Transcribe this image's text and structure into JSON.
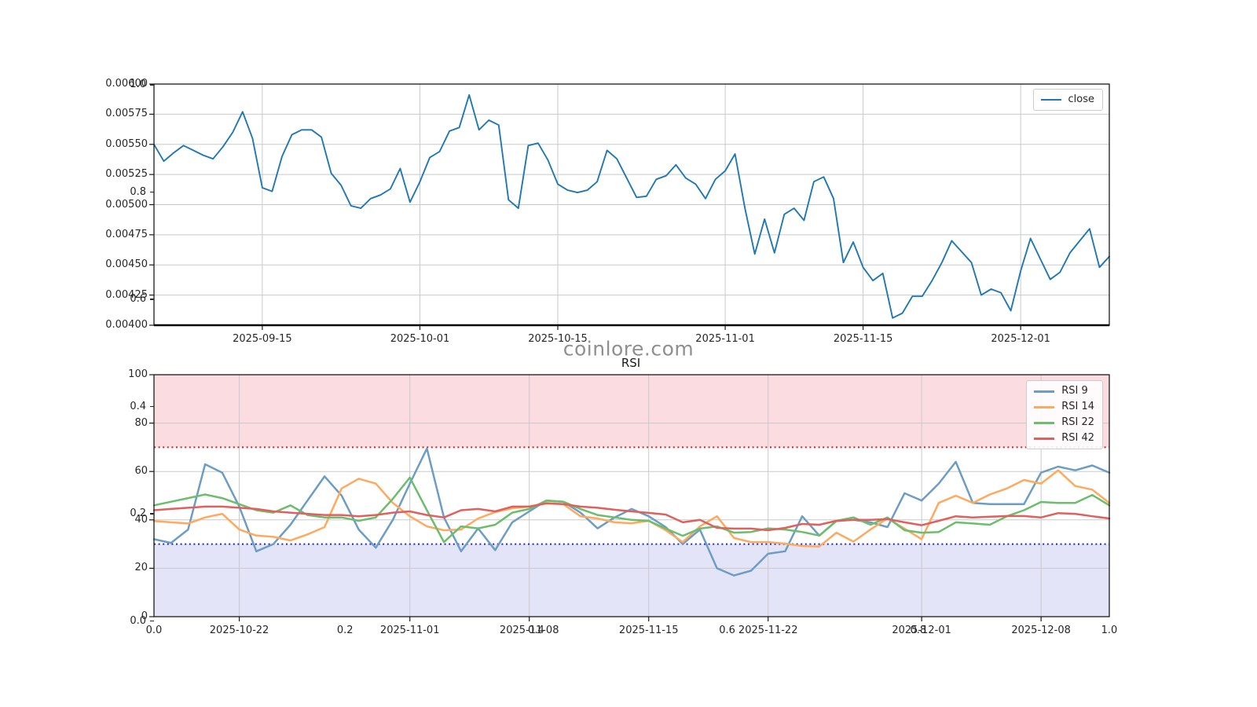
{
  "watermark": "coinlore.com",
  "colors": {
    "close_line": "#1f77b4",
    "rsi9": "#6c9dc5",
    "rsi14": "#ffa95e",
    "rsi22": "#6cbd6c",
    "rsi42": "#e0605e",
    "grid": "#c9c9c9",
    "spine": "#1a1a1a",
    "overbought_line": "#cc2222",
    "oversold_line": "#2222cc",
    "overbought_band": "#fbdce1",
    "oversold_band": "#e4e4f9",
    "watermark_gray": "#8f8f8f"
  },
  "hidden_axis_ticks": {
    "y": [
      "1.0",
      "0.8",
      "0.6",
      "0.4",
      "0.2",
      "0.0"
    ],
    "x": [
      "0.0",
      "0.2",
      "0.4",
      "0.6",
      "0.8",
      "1.0"
    ]
  },
  "chart_data": [
    {
      "type": "line",
      "title": "",
      "legend": [
        "close"
      ],
      "legend_position": "upper right",
      "grid": true,
      "x_range": [
        "2025-09-04",
        "2025-12-10"
      ],
      "ylim": [
        0.004,
        0.006
      ],
      "y_ticks": [
        {
          "label": "0.00600",
          "value": 0.006
        },
        {
          "label": "0.00575",
          "value": 0.00575
        },
        {
          "label": "0.00550",
          "value": 0.0055
        },
        {
          "label": "0.00525",
          "value": 0.00525
        },
        {
          "label": "0.00500",
          "value": 0.005
        },
        {
          "label": "0.00475",
          "value": 0.00475
        },
        {
          "label": "0.00450",
          "value": 0.0045
        },
        {
          "label": "0.00425",
          "value": 0.00425
        },
        {
          "label": "0.00400",
          "value": 0.004
        }
      ],
      "x_ticks": [
        {
          "label": "2025-09-15",
          "day": 11
        },
        {
          "label": "2025-10-01",
          "day": 27
        },
        {
          "label": "2025-10-15",
          "day": 41
        },
        {
          "label": "2025-11-01",
          "day": 58
        },
        {
          "label": "2025-11-15",
          "day": 72
        },
        {
          "label": "2025-12-01",
          "day": 88
        }
      ],
      "series": [
        {
          "name": "close",
          "color": "#1f77b4",
          "width": 1.9,
          "values": [
            0.0055,
            0.00536,
            0.00543,
            0.00549,
            0.00545,
            0.00541,
            0.00538,
            0.00548,
            0.0056,
            0.00577,
            0.00555,
            0.00514,
            0.00511,
            0.0054,
            0.00558,
            0.00562,
            0.00562,
            0.00556,
            0.00526,
            0.00516,
            0.00499,
            0.00497,
            0.00505,
            0.00508,
            0.00513,
            0.0053,
            0.00502,
            0.00519,
            0.00539,
            0.00544,
            0.00561,
            0.00564,
            0.00591,
            0.00562,
            0.0057,
            0.00566,
            0.00504,
            0.00497,
            0.00549,
            0.00551,
            0.00537,
            0.00517,
            0.00512,
            0.0051,
            0.00512,
            0.00519,
            0.00545,
            0.00538,
            0.00522,
            0.00506,
            0.00507,
            0.00521,
            0.00524,
            0.00533,
            0.00522,
            0.00517,
            0.00505,
            0.00521,
            0.00528,
            0.00542,
            0.00497,
            0.00459,
            0.00488,
            0.0046,
            0.00492,
            0.00497,
            0.00487,
            0.00519,
            0.00523,
            0.00505,
            0.00452,
            0.00469,
            0.00448,
            0.00437,
            0.00443,
            0.00406,
            0.0041,
            0.00424,
            0.00424,
            0.00437,
            0.00452,
            0.0047,
            0.00461,
            0.00452,
            0.00425,
            0.0043,
            0.00427,
            0.00412,
            0.00445,
            0.00472,
            0.00455,
            0.00438,
            0.00444,
            0.0046,
            0.0047,
            0.0048,
            0.00448,
            0.00457
          ]
        }
      ]
    },
    {
      "type": "line",
      "title": "RSI",
      "legend": [
        "RSI 9",
        "RSI 14",
        "RSI 22",
        "RSI 42"
      ],
      "legend_position": "upper right",
      "grid": true,
      "x_range": [
        "2025-10-17",
        "2025-12-12"
      ],
      "ylim": [
        0,
        100
      ],
      "overbought_level": 70,
      "oversold_level": 30,
      "y_ticks": [
        {
          "label": "100",
          "value": 100
        },
        {
          "label": "80",
          "value": 80
        },
        {
          "label": "60",
          "value": 60
        },
        {
          "label": "40",
          "value": 40
        },
        {
          "label": "20",
          "value": 20
        },
        {
          "label": "0",
          "value": 0
        }
      ],
      "x_ticks": [
        {
          "label": "2025-10-22",
          "day": 5
        },
        {
          "label": "2025-11-01",
          "day": 15
        },
        {
          "label": "2025-11-08",
          "day": 22
        },
        {
          "label": "2025-11-15",
          "day": 29
        },
        {
          "label": "2025-11-22",
          "day": 36
        },
        {
          "label": "2025-12-01",
          "day": 45
        },
        {
          "label": "2025-12-08",
          "day": 52
        }
      ],
      "series": [
        {
          "name": "RSI 9",
          "color": "#6c9dc5",
          "width": 2.5,
          "values": [
            32,
            30.5,
            36,
            63,
            59.5,
            45.5,
            27,
            30,
            38,
            48,
            58,
            50,
            36,
            28.5,
            40,
            55,
            69.5,
            41,
            27,
            36.5,
            27.5,
            39,
            43.5,
            48,
            47.5,
            43,
            36.5,
            41,
            44.5,
            41.5,
            37,
            30,
            36,
            20,
            17,
            19,
            26,
            27,
            41.5,
            33.5,
            39.5,
            40,
            39,
            37,
            51,
            48,
            55,
            64,
            47,
            46.5,
            46.5,
            46.5,
            59.5,
            62,
            60.5,
            62.5,
            59.5
          ]
        },
        {
          "name": "RSI 14",
          "color": "#ffa95e",
          "width": 2.5,
          "values": [
            39.5,
            39,
            38.5,
            41,
            42.5,
            36,
            33.5,
            33,
            31.5,
            34,
            37,
            53,
            57,
            55,
            47,
            41.5,
            37.3,
            35.7,
            36,
            40.6,
            43.2,
            44.8,
            45.5,
            47,
            46.5,
            41.5,
            40.6,
            39,
            38.6,
            39.6,
            35.7,
            30.8,
            37.3,
            41.5,
            32.5,
            30.8,
            30.8,
            30.2,
            29.2,
            29,
            34.7,
            31,
            36,
            40.6,
            36.4,
            32,
            47,
            50,
            47,
            50.5,
            53,
            56.5,
            55,
            60.5,
            54,
            52.5,
            47
          ]
        },
        {
          "name": "RSI 22",
          "color": "#6cbd6c",
          "width": 2.5,
          "values": [
            46,
            47.5,
            49,
            50.5,
            49,
            46.5,
            44,
            43,
            46,
            42,
            41,
            41,
            39.6,
            41,
            48.7,
            57.5,
            44,
            30.8,
            37.3,
            36.5,
            38,
            43,
            44.5,
            48,
            47.5,
            44.5,
            42,
            41,
            40,
            39.6,
            36.4,
            33.4,
            36.4,
            37.3,
            34.7,
            35,
            36.5,
            36,
            35,
            33.5,
            39.6,
            41,
            38,
            41,
            35.7,
            34.7,
            35,
            39,
            38.5,
            38,
            41.5,
            44,
            47.4,
            47,
            47,
            50.3,
            46
          ]
        },
        {
          "name": "RSI 42",
          "color": "#e0605e",
          "width": 2.5,
          "values": [
            44,
            44.5,
            45,
            45.5,
            45.5,
            45,
            44.5,
            43.5,
            43,
            42.5,
            42,
            42,
            41.5,
            42,
            43,
            43.5,
            42,
            41,
            44,
            44.5,
            43.5,
            45.5,
            45.5,
            46.8,
            46.5,
            45.5,
            45,
            44.2,
            43.5,
            42.9,
            42.2,
            39,
            40,
            36.7,
            36.4,
            36.4,
            35.7,
            36.7,
            38.3,
            38,
            39.6,
            40,
            40,
            40.3,
            39,
            37.8,
            39.6,
            41.5,
            41,
            41.3,
            41.6,
            41.6,
            41,
            42.8,
            42.5,
            41.5,
            40.6
          ]
        }
      ]
    }
  ]
}
